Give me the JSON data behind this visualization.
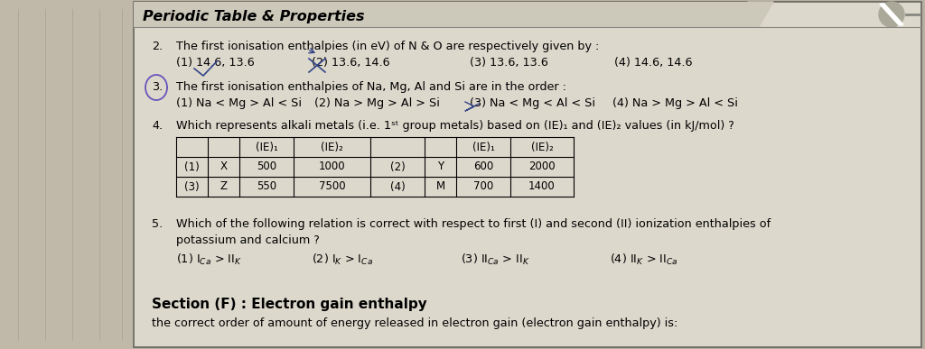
{
  "outer_bg": "#b8b0a0",
  "page_bg": "#e8e3d8",
  "content_bg": "#ddd8cc",
  "title_text": "Periodic Table & Properties",
  "q2_num": "2.",
  "q2_line1": "The first ionisation enthalpies (in eV) of N & O are respectively given by :",
  "q2_opts": [
    "(1) 14.6, 13.6",
    "(2) 13.6, 14.6",
    "(3) 13.6, 13.6",
    "(4) 14.6, 14.6"
  ],
  "q3_num": "3.",
  "q3_line1": "The first ionisation enthalpies of Na, Mg, Al and Si are in the order :",
  "q3_opts": [
    "(1) Na < Mg > Al < Si",
    "(2) Na > Mg > Al > Si",
    "(3) Na < Mg < Al < Si",
    "(4) Na > Mg > Al < Si"
  ],
  "q4_num": "4.",
  "q4_line1": "Which represents alkali metals (i.e. 1ˢᵗ group metals) based on (IE)₁ and (IE)₂ values (in kJ/mol) ?",
  "tbl_h1": "(IE)₁",
  "tbl_h2": "(IE)₂",
  "tbl_r1": [
    "(1)",
    "X",
    "500",
    "1000",
    "(2)",
    "Y",
    "600",
    "2000"
  ],
  "tbl_r2": [
    "(3)",
    "Z",
    "550",
    "7500",
    "(4)",
    "M",
    "700",
    "1400"
  ],
  "q5_num": "5.",
  "q5_line1": "Which of the following relation is correct with respect to first (I) and second (II) ionization enthalpies of",
  "q5_line2": "potassium and calcium ?",
  "q5_opt1": "(1) I$_{Ca}$ > II$_K$",
  "q5_opt2": "(2) I$_K$ > I$_{Ca}$",
  "q5_opt3": "(3) II$_{Ca}$ > II$_K$",
  "q5_opt4": "(4) II$_K$ > II$_{Ca}$",
  "sec_title": "Section (F) : Electron gain enthalpy",
  "sec_sub": "the correct order of amount of energy released in electron gain (electron gain enthalpy) is:"
}
